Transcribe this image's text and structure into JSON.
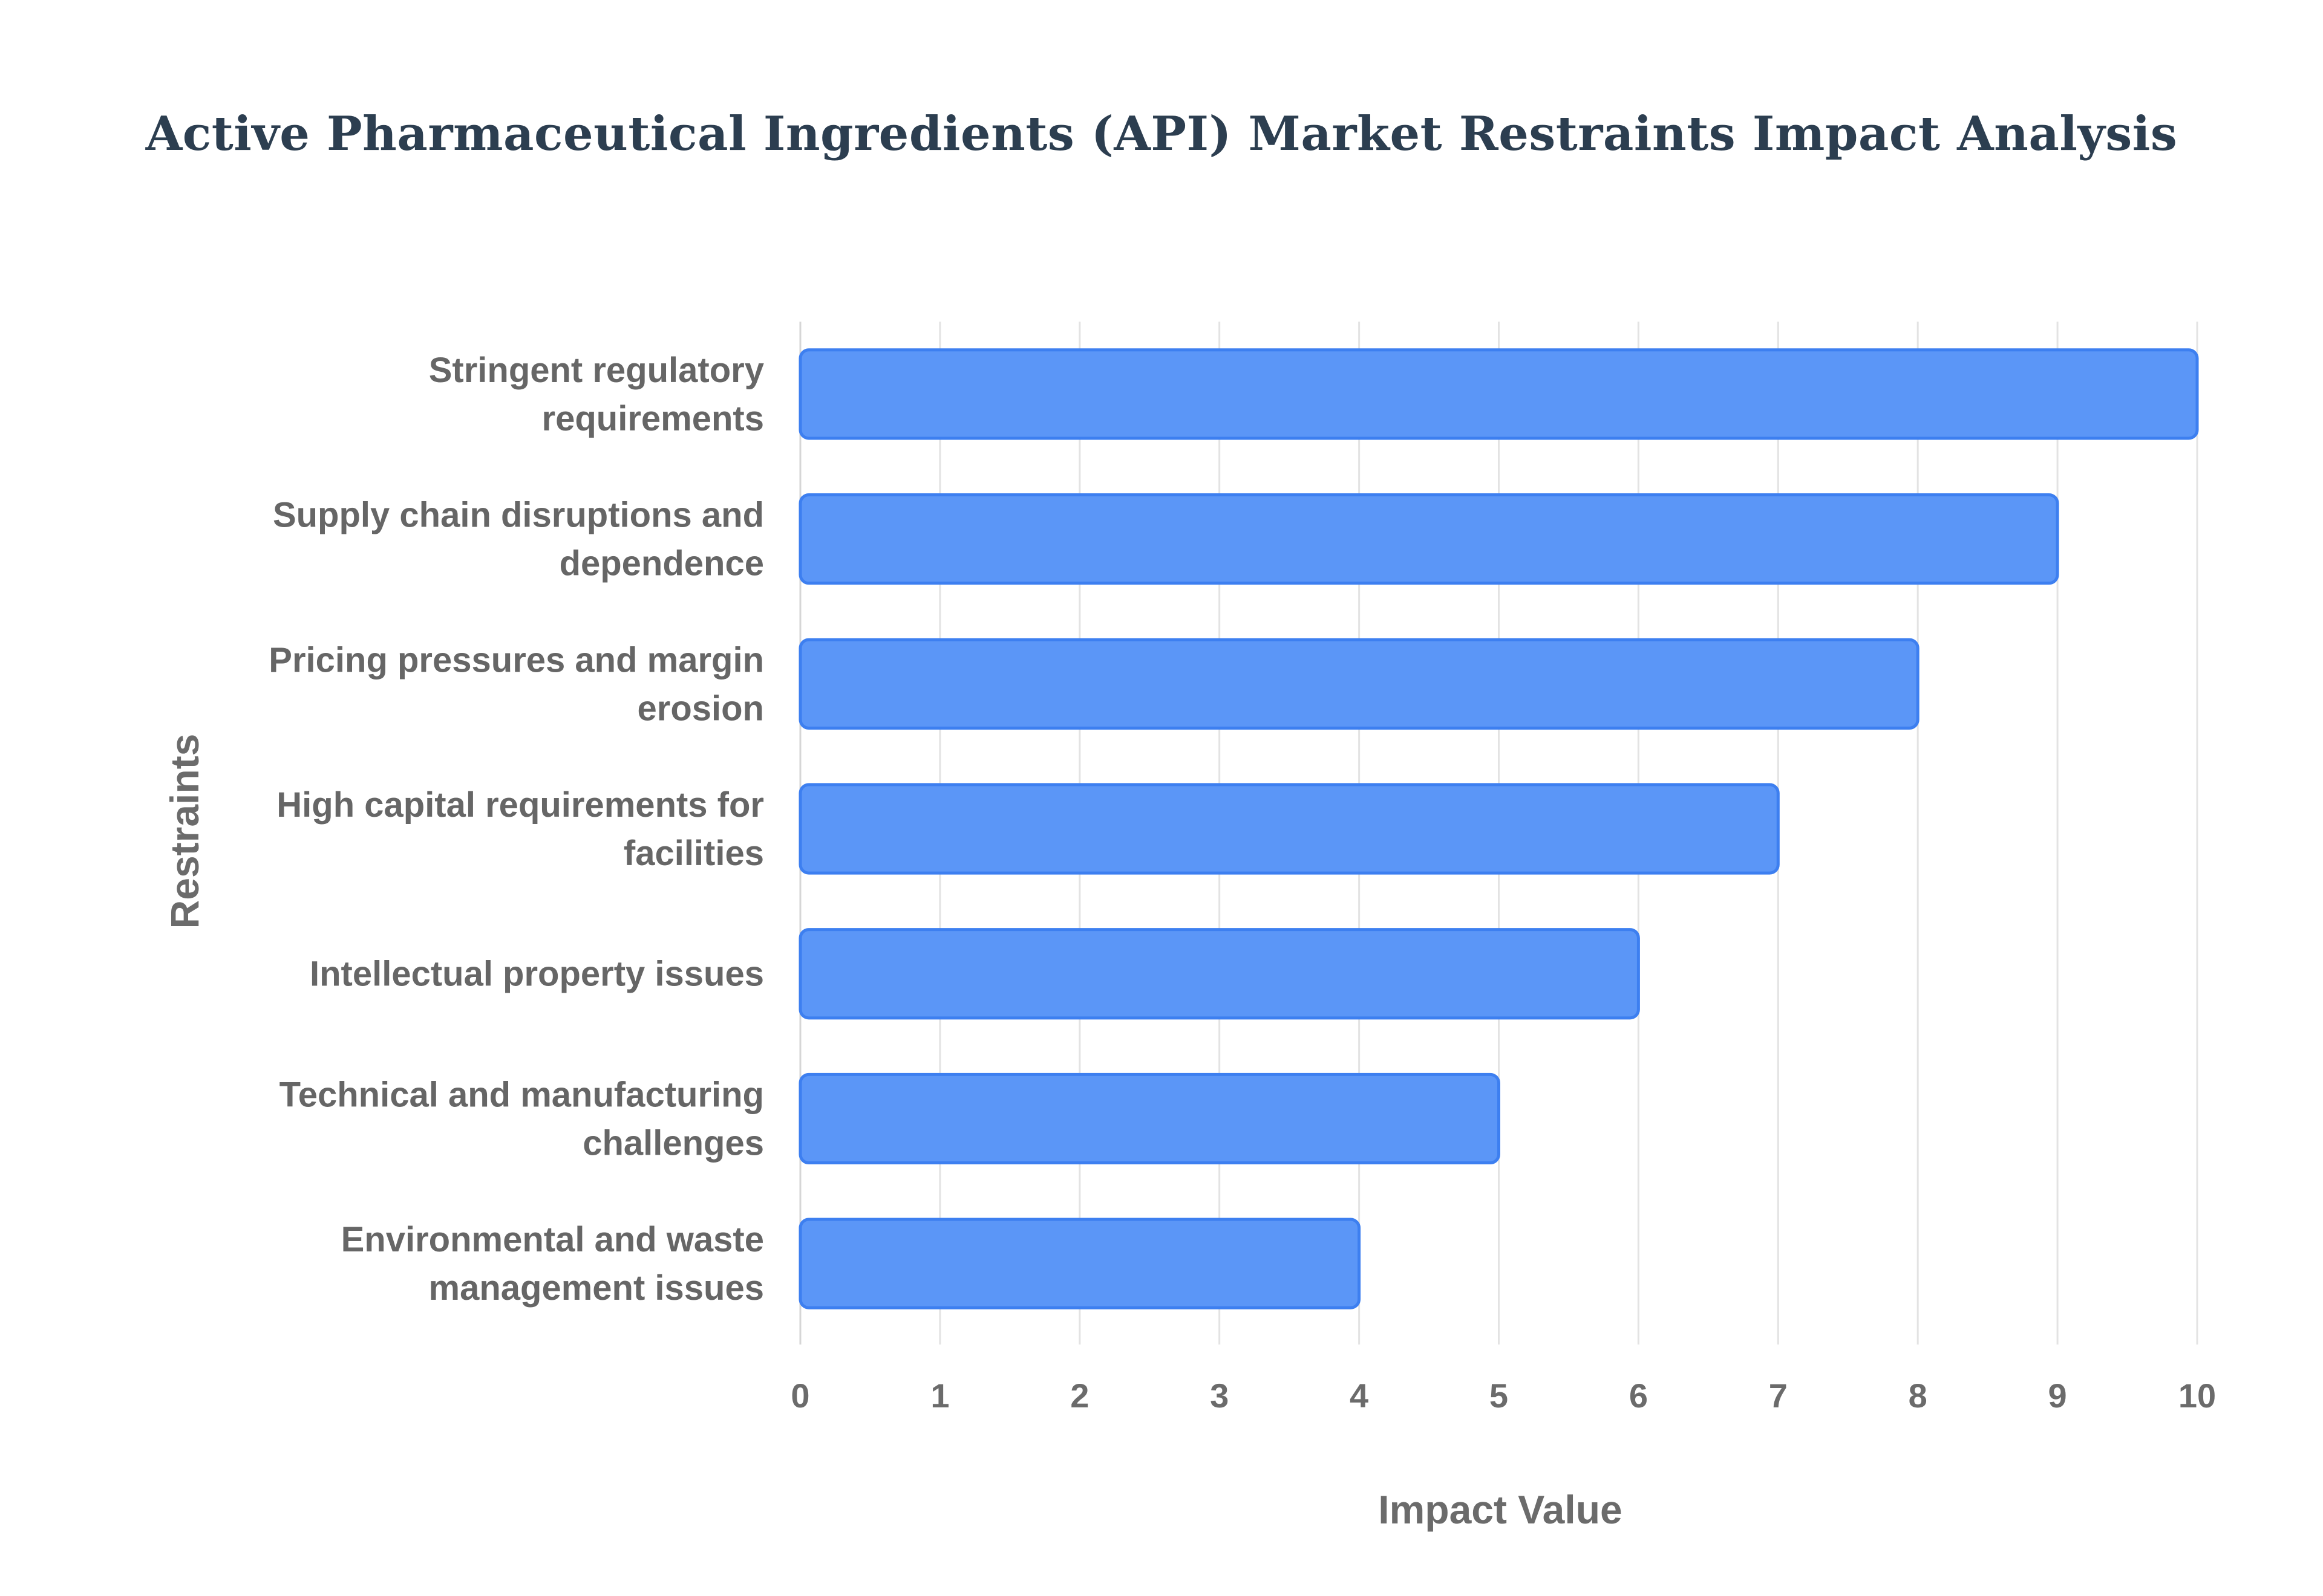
{
  "chart_data": {
    "type": "bar",
    "orientation": "horizontal",
    "title": "Active Pharmaceutical Ingredients (API) Market Restraints Impact Analysis",
    "xlabel": "Impact Value",
    "ylabel": "Restraints",
    "xlim": [
      0,
      10
    ],
    "x_ticks": [
      "0",
      "1",
      "2",
      "3",
      "4",
      "5",
      "6",
      "7",
      "8",
      "9",
      "10"
    ],
    "grid": true,
    "legend": "none",
    "bar_color": "#5b96f7",
    "bar_border_color": "#3d7ff0",
    "categories": [
      [
        "Stringent regulatory",
        "requirements"
      ],
      [
        "Supply chain disruptions and",
        "dependence"
      ],
      [
        "Pricing pressures and margin",
        "erosion"
      ],
      [
        "High capital requirements for",
        "facilities"
      ],
      [
        "Intellectual property issues"
      ],
      [
        "Technical and manufacturing",
        "challenges"
      ],
      [
        "Environmental and waste",
        "management issues"
      ]
    ],
    "values": [
      10,
      9,
      8,
      7,
      6,
      5,
      4
    ]
  }
}
